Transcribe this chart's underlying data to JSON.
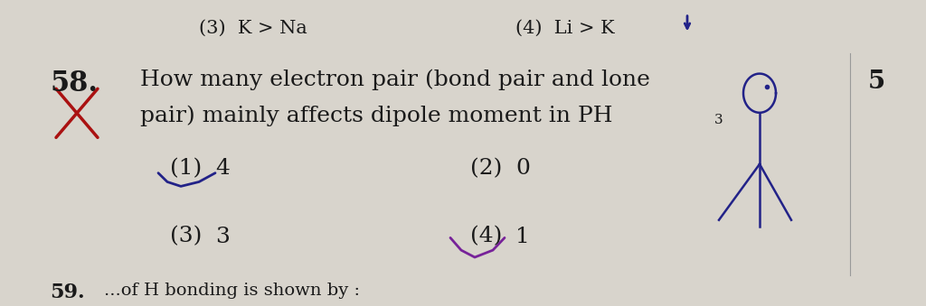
{
  "bg_color": "#d8d4cc",
  "text_color": "#1a1a1a",
  "prev_opt3": "(3)  K > Na",
  "prev_opt4": "(4)  Li > K",
  "q_num": "58.",
  "q_line1": "How many electron pair (bond pair and lone",
  "q_line2": "pair) mainly affects dipole moment in PH",
  "ph_sub": "3",
  "opt1_label": "(1)",
  "opt1_val": "4",
  "opt2_label": "(2)",
  "opt2_val": "0",
  "opt3_label": "(3)",
  "opt3_val": "3",
  "opt4_label": "(4)",
  "opt4_val": "1",
  "side_num": "5",
  "font_size_prev": 15,
  "font_size_q": 18,
  "font_size_opt": 18,
  "font_size_num": 20,
  "red_color": "#aa1111",
  "blue_color": "#222288",
  "purple_color": "#772299"
}
